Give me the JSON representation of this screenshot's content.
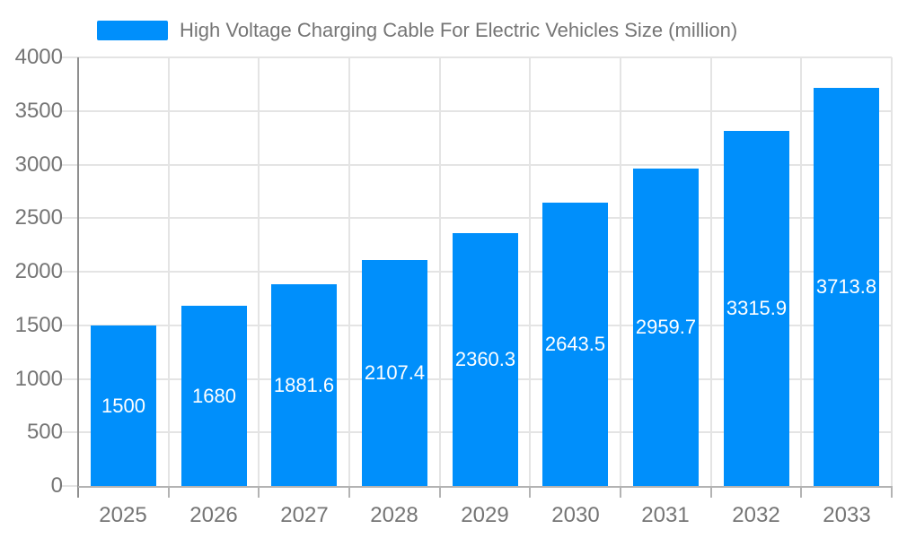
{
  "legend": {
    "label": "High Voltage Charging Cable For Electric Vehicles Size (million)"
  },
  "chart_data": {
    "type": "bar",
    "title": "High Voltage Charging Cable For Electric Vehicles Size (million)",
    "categories": [
      "2025",
      "2026",
      "2027",
      "2028",
      "2029",
      "2030",
      "2031",
      "2032",
      "2033"
    ],
    "values": [
      1500,
      1680,
      1881.6,
      2107.4,
      2360.3,
      2643.5,
      2959.7,
      3315.9,
      3713.8
    ],
    "value_labels": [
      "1500",
      "1680",
      "1881.6",
      "2107.4",
      "2360.3",
      "2643.5",
      "2959.7",
      "3315.9",
      "3713.8"
    ],
    "xlabel": "",
    "ylabel": "",
    "ylim": [
      0,
      4000
    ],
    "y_ticks": [
      0,
      500,
      1000,
      1500,
      2000,
      2500,
      3000,
      3500,
      4000
    ],
    "y_tick_labels": [
      "0",
      "500",
      "1000",
      "1500",
      "2000",
      "2500",
      "3000",
      "3500",
      "4000"
    ],
    "grid": true,
    "legend_position": "top"
  },
  "colors": {
    "bar": "#008FFB",
    "bar_label_text": "#ffffff",
    "axis_text": "#757575",
    "grid_line": "#e4e4e4",
    "x_axis_line": "#b3b3b3",
    "y_axis_line": "#8e8e8e",
    "background": "#ffffff"
  }
}
